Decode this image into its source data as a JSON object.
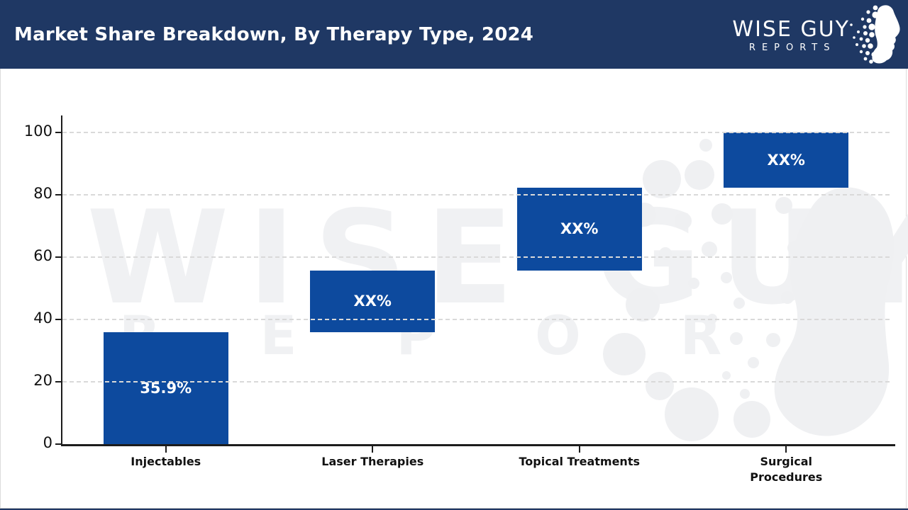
{
  "header": {
    "title": "Market Share Breakdown, By Therapy Type, 2024",
    "bg_color": "#1f3864",
    "logo": {
      "line1": "WISE GUY",
      "line2": "REPORTS"
    }
  },
  "watermark": {
    "line1": "WISE GUY",
    "line2": "REPORTS"
  },
  "chart_data": {
    "type": "bar",
    "subtype": "waterfall-stacked",
    "title": "Market Share Breakdown, By Therapy Type, 2024",
    "categories": [
      "Injectables",
      "Laser Therapies",
      "Topical Treatments",
      "Surgical\nProcedures"
    ],
    "segments": [
      {
        "start": 0,
        "end": 35.9,
        "label": "35.9%"
      },
      {
        "start": 35.9,
        "end": 55.7,
        "label": "XX%"
      },
      {
        "start": 55.7,
        "end": 82.3,
        "label": "XX%"
      },
      {
        "start": 82.3,
        "end": 100,
        "label": "XX%"
      }
    ],
    "values_pct": [
      35.9,
      19.8,
      26.6,
      17.7
    ],
    "cumulative_pct": [
      35.9,
      55.7,
      82.3,
      100
    ],
    "xlabel": "",
    "ylabel": "",
    "ylim": [
      0,
      100
    ],
    "yticks": [
      0,
      20,
      40,
      60,
      80,
      100
    ],
    "grid": "horizontal-dashed-over-bars",
    "legend": "none",
    "bar_color": "#0d4a9e",
    "bar_label_color": "#ffffff"
  }
}
